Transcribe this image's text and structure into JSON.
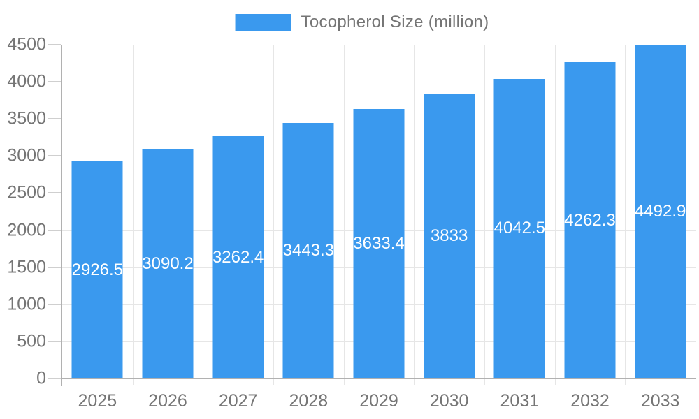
{
  "legend": {
    "items": [
      {
        "label": "Tocopherol Size (million)",
        "color": "#3A99EE"
      }
    ],
    "position": "top"
  },
  "colors": {
    "bar": "#3A99EE",
    "axis_text": "#757575",
    "grid": "#e6e6e6",
    "axis_line": "#b1b1b1",
    "tick": "#cfcfcf",
    "value_label": "#ffffff",
    "background": "#ffffff"
  },
  "chart_data": {
    "type": "bar",
    "title": "",
    "xlabel": "",
    "ylabel": "",
    "categories": [
      "2025",
      "2026",
      "2027",
      "2028",
      "2029",
      "2030",
      "2031",
      "2032",
      "2033"
    ],
    "series": [
      {
        "name": "Tocopherol Size (million)",
        "values": [
          2926.5,
          3090.2,
          3262.4,
          3443.3,
          3633.4,
          3833,
          4042.5,
          4262.3,
          4492.9
        ],
        "value_labels": [
          "2926.5",
          "3090.2",
          "3262.4",
          "3443.3",
          "3633.4",
          "3833",
          "4042.5",
          "4262.3",
          "4492.9"
        ]
      }
    ],
    "ylim": [
      0,
      4500
    ],
    "yticks": [
      0,
      500,
      1000,
      1500,
      2000,
      2500,
      3000,
      3500,
      4000,
      4500
    ],
    "grid": {
      "horizontal": true,
      "vertical": true
    },
    "legend_position": "top",
    "value_label_position": "center-of-bar"
  }
}
